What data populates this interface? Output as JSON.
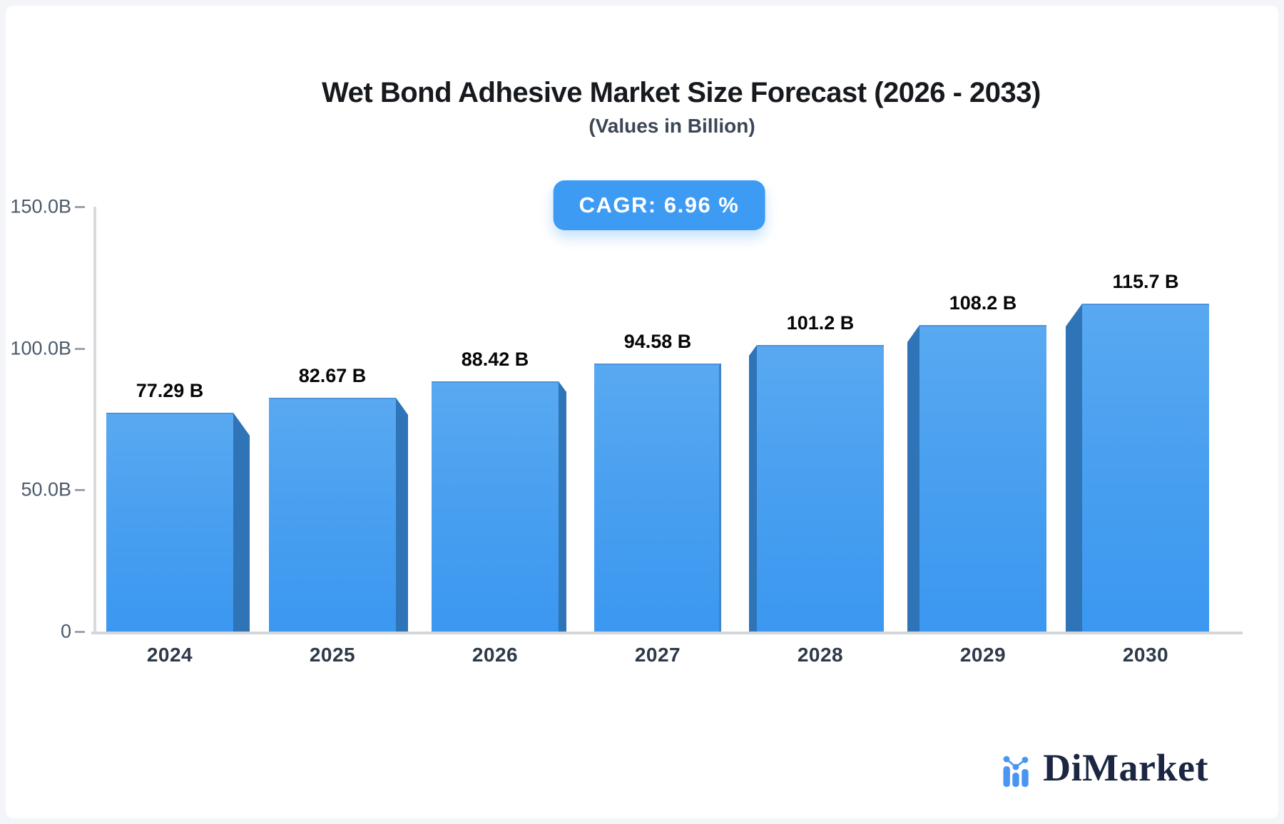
{
  "header": {
    "title": "Wet Bond Adhesive Market Size Forecast (2026 - 2033)",
    "subtitle": "(Values in Billion)",
    "cagr_badge": "CAGR: 6.96 %"
  },
  "chart_data": {
    "type": "bar",
    "title": "Wet Bond Adhesive Market Size Forecast (2026 - 2033)",
    "subtitle": "(Values in Billion)",
    "cagr_percent": 6.96,
    "categories": [
      "2024",
      "2025",
      "2026",
      "2027",
      "2028",
      "2029",
      "2030"
    ],
    "values": [
      77.29,
      82.67,
      88.42,
      94.58,
      101.2,
      108.2,
      115.7
    ],
    "bar_labels": [
      "77.29 B",
      "82.67 B",
      "88.42 B",
      "94.58 B",
      "101.2 B",
      "108.2 B",
      "115.7 B"
    ],
    "y_ticks": [
      {
        "label": "150.0B",
        "value": 150
      },
      {
        "label": "100.0B",
        "value": 100
      },
      {
        "label": "50.0B",
        "value": 50
      },
      {
        "label": "0",
        "value": 0
      }
    ],
    "ylim": [
      0,
      150
    ],
    "unit": "Billion",
    "grid": false,
    "legend": "none",
    "bar_style": "3d-perspective"
  },
  "branding": {
    "name": "DiMarket"
  },
  "colors": {
    "bar_face_top": "#58a9f1",
    "bar_face_bottom": "#3b97f0",
    "bar_side": "#2e74b6",
    "badge_bg": "#3e9bf4",
    "badge_text": "#ffffff",
    "axis_line": "#d7dadf",
    "y_label": "#4c5a6b",
    "x_label": "#2e3a49",
    "value_label": "#070707",
    "title": "#16191d",
    "subtitle": "#3b4656",
    "brand_navy": "#1b2742",
    "brand_blue": "#4a95f0"
  }
}
